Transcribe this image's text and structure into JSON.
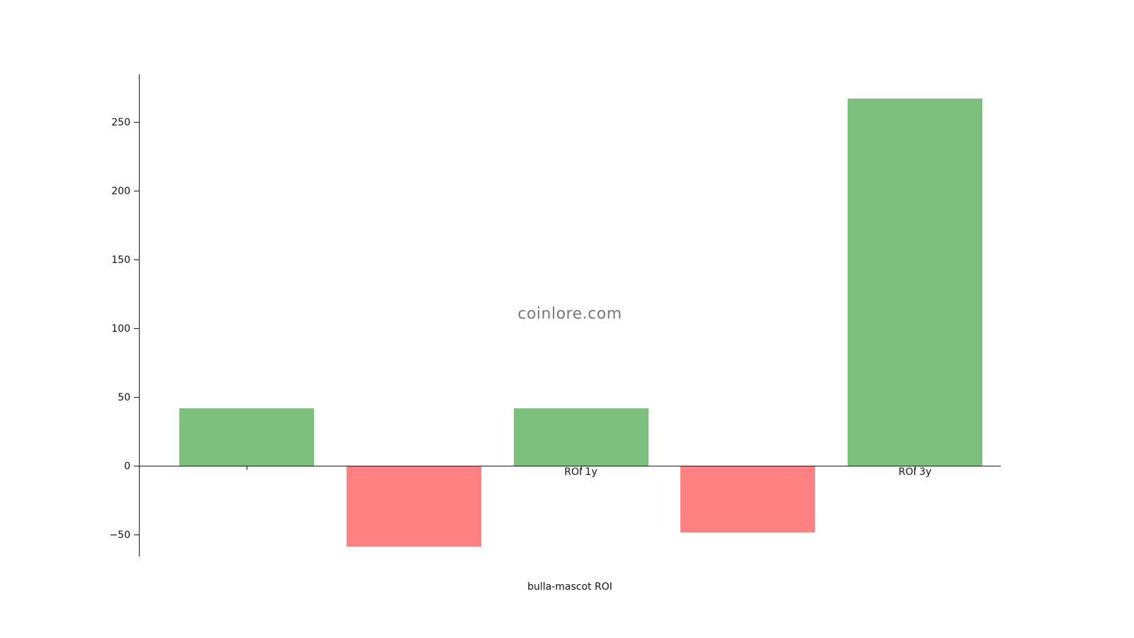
{
  "watermark": {
    "text": "coinlore.com",
    "color": "#777777"
  },
  "chart_data": {
    "type": "bar",
    "title": "",
    "xlabel": "bulla-mascot ROI",
    "ylabel": "",
    "categories": [
      "",
      "",
      "ROI 1y",
      "",
      "ROI 3y"
    ],
    "values": [
      42,
      -58,
      42,
      -48,
      267
    ],
    "visible_x_tick_indices": [
      0,
      2,
      4
    ],
    "y_ticks": [
      -50,
      0,
      50,
      100,
      150,
      200,
      250
    ],
    "ylim": [
      -66,
      285
    ],
    "grid": false,
    "legend": null,
    "colors": {
      "positive_bar": "#7dc07d",
      "negative_bar": "#ff8181",
      "axis": "#1a1a1a",
      "tick_text": "#111111"
    }
  }
}
